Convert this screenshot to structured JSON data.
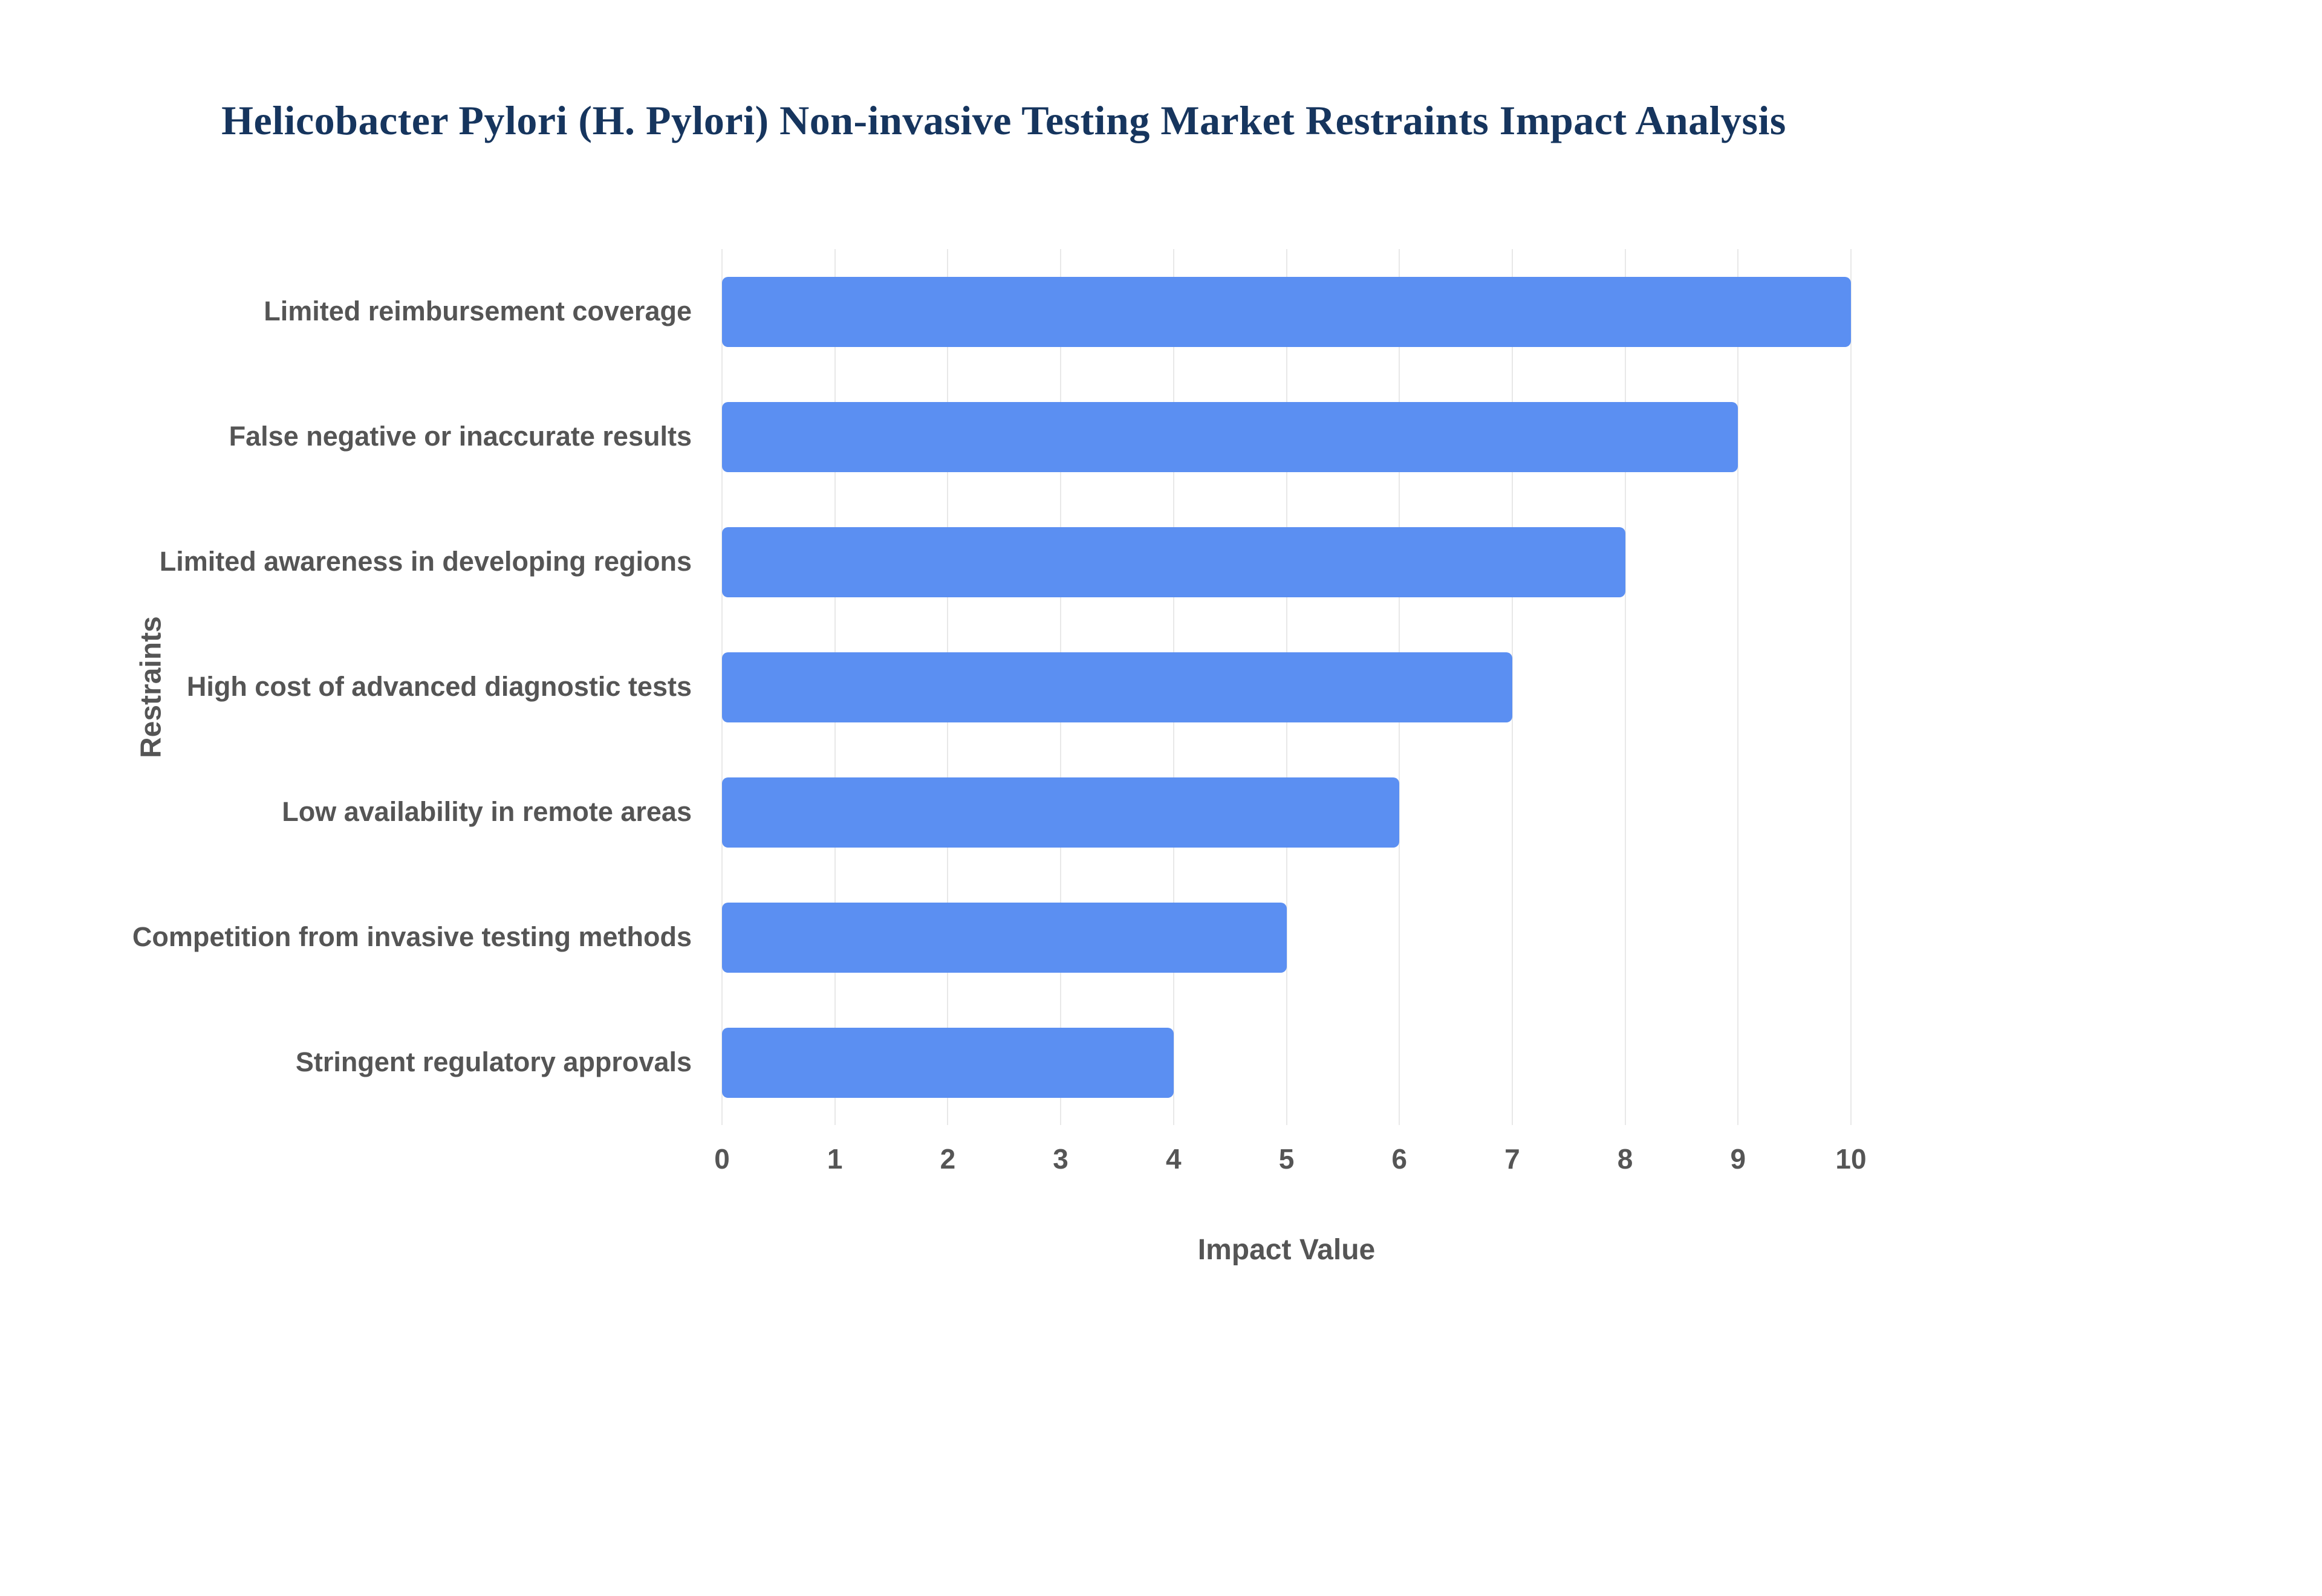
{
  "chart_data": {
    "type": "bar",
    "orientation": "horizontal",
    "title": "Helicobacter Pylori (H. Pylori) Non-invasive Testing Market Restraints Impact Analysis",
    "categories": [
      "Limited reimbursement coverage",
      "False negative or inaccurate results",
      "Limited awareness in developing regions",
      "High cost of advanced diagnostic tests",
      "Low availability in remote areas",
      "Competition from invasive testing methods",
      "Stringent regulatory approvals"
    ],
    "values": [
      10,
      9,
      8,
      7,
      6,
      5,
      4
    ],
    "xlabel": "Impact Value",
    "ylabel": "Restraints",
    "xlim": [
      0,
      10
    ],
    "xticks": [
      0,
      1,
      2,
      3,
      4,
      5,
      6,
      7,
      8,
      9,
      10
    ],
    "grid": true,
    "legend": "none",
    "colors": {
      "bar": "#5b8ff2",
      "title": "#16355e",
      "labels": "#555555",
      "gridline": "#e8e8e8",
      "background": "#ffffff"
    }
  }
}
